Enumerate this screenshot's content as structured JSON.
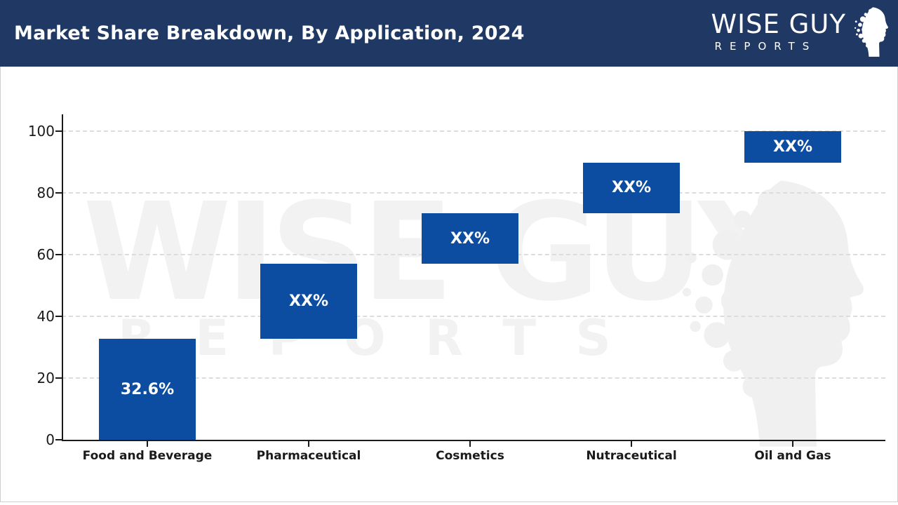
{
  "header": {
    "title": "Market Share Breakdown, By Application, 2024",
    "bg_color": "#1f3864",
    "logo": {
      "line1": "WISE GUY",
      "line2": "REPORTS"
    }
  },
  "watermark": {
    "line1": "WISE GUY",
    "line2": "R E P O R T S"
  },
  "chart_data": {
    "type": "bar",
    "subtype": "waterfall",
    "title": "Market Share Breakdown, By Application, 2024",
    "categories": [
      "Food and Beverage",
      "Pharmaceutical",
      "Cosmetics",
      "Nutraceutical",
      "Oil and Gas"
    ],
    "segments": [
      {
        "category": "Food and Beverage",
        "start": 0,
        "end": 32.6,
        "label": "32.6%"
      },
      {
        "category": "Pharmaceutical",
        "start": 32.6,
        "end": 57.0,
        "label": "XX%"
      },
      {
        "category": "Cosmetics",
        "start": 57.0,
        "end": 73.3,
        "label": "XX%"
      },
      {
        "category": "Nutraceutical",
        "start": 73.3,
        "end": 89.7,
        "label": "XX%"
      },
      {
        "category": "Oil and Gas",
        "start": 89.7,
        "end": 100,
        "label": "XX%"
      }
    ],
    "yticks": [
      0,
      20,
      40,
      60,
      80,
      100
    ],
    "ylim": [
      0,
      105
    ],
    "xlabel": "",
    "ylabel": "",
    "bar_color": "#0c4da2",
    "grid": "horizontal-dashed",
    "legend": "none"
  }
}
